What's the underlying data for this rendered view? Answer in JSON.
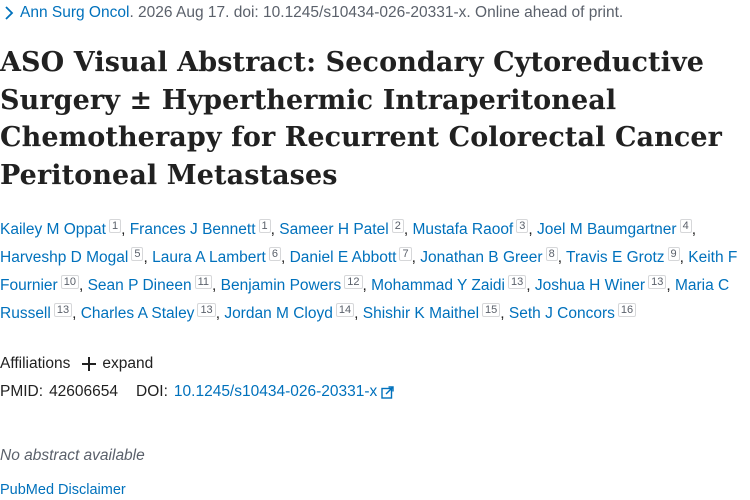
{
  "citation": {
    "journal": "Ann Surg Oncol",
    "details": ". 2026 Aug 17. doi: 10.1245/s10434-026-20331-x. Online ahead of print."
  },
  "title": "ASO Visual Abstract: Secondary Cytoreductive Surgery ± Hyperthermic Intraperitoneal Chemotherapy for Recurrent Colorectal Cancer Peritoneal Metastases",
  "authors": [
    {
      "name": "Kailey M Oppat",
      "aff": "1"
    },
    {
      "name": "Frances J Bennett",
      "aff": "1"
    },
    {
      "name": "Sameer H Patel",
      "aff": "2"
    },
    {
      "name": "Mustafa Raoof",
      "aff": "3"
    },
    {
      "name": "Joel M Baumgartner",
      "aff": "4"
    },
    {
      "name": "Harveshp D Mogal",
      "aff": "5"
    },
    {
      "name": "Laura A Lambert",
      "aff": "6"
    },
    {
      "name": "Daniel E Abbott",
      "aff": "7"
    },
    {
      "name": "Jonathan B Greer",
      "aff": "8"
    },
    {
      "name": "Travis E Grotz",
      "aff": "9"
    },
    {
      "name": "Keith F Fournier",
      "aff": "10"
    },
    {
      "name": "Sean P Dineen",
      "aff": "11"
    },
    {
      "name": "Benjamin Powers",
      "aff": "12"
    },
    {
      "name": "Mohammad Y Zaidi",
      "aff": "13"
    },
    {
      "name": "Joshua H Winer",
      "aff": "13"
    },
    {
      "name": "Maria C Russell",
      "aff": "13"
    },
    {
      "name": "Charles A Staley",
      "aff": "13"
    },
    {
      "name": "Jordan M Cloyd",
      "aff": "14"
    },
    {
      "name": "Shishir K Maithel",
      "aff": "15"
    },
    {
      "name": "Seth J Concors",
      "aff": "16"
    }
  ],
  "affiliations": {
    "label": "Affiliations",
    "expand_label": "expand"
  },
  "ids": {
    "pmid_label": "PMID:",
    "pmid": "42606654",
    "doi_label": "DOI:",
    "doi": "10.1245/s10434-026-20331-x"
  },
  "abstract_text": "No abstract available",
  "disclaimer": "PubMed Disclaimer",
  "colors": {
    "link": "#0071bc",
    "text": "#212121",
    "muted": "#5b616b"
  },
  "icons": {
    "citation_chevron": "chevron-right-icon",
    "expand": "plus-icon",
    "doi_external": "external-link-icon"
  }
}
